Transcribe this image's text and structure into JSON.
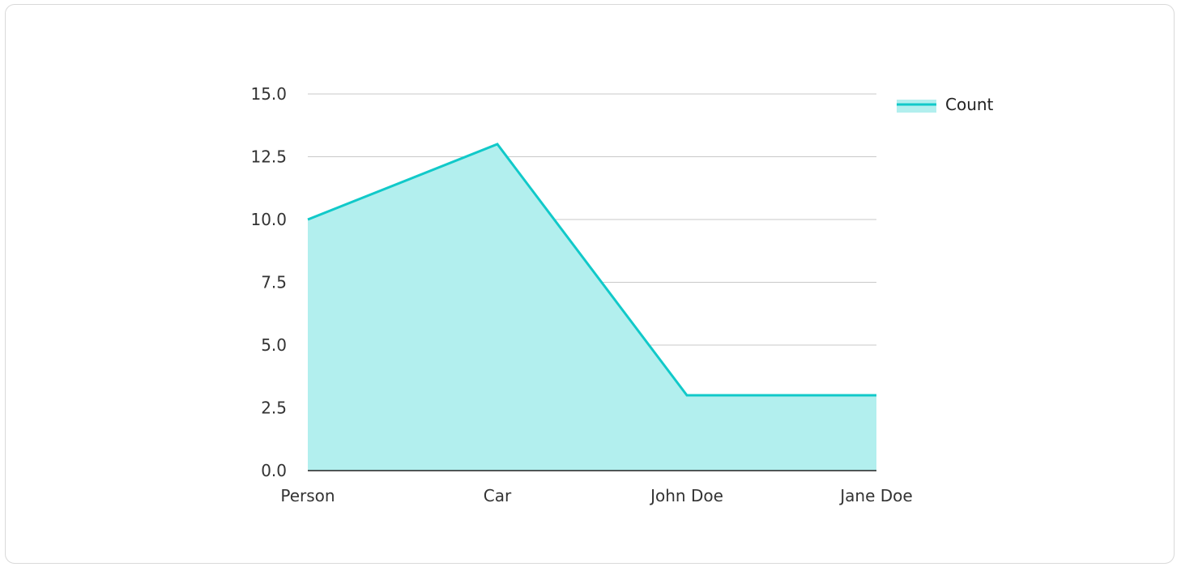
{
  "chart_data": {
    "type": "area",
    "categories": [
      "Person",
      "Car",
      "John Doe",
      "Jane Doe"
    ],
    "series": [
      {
        "name": "Count",
        "values": [
          10,
          13,
          3,
          3
        ]
      }
    ],
    "ylim": [
      0,
      15
    ],
    "yticks": [
      "0.0",
      "2.5",
      "5.0",
      "7.5",
      "10.0",
      "12.5",
      "15.0"
    ],
    "grid": true,
    "legend": "right",
    "colors": {
      "line": "#11c9c9",
      "fill": "#b2efee",
      "grid": "#c8c8c8",
      "axis": "#222222"
    }
  }
}
